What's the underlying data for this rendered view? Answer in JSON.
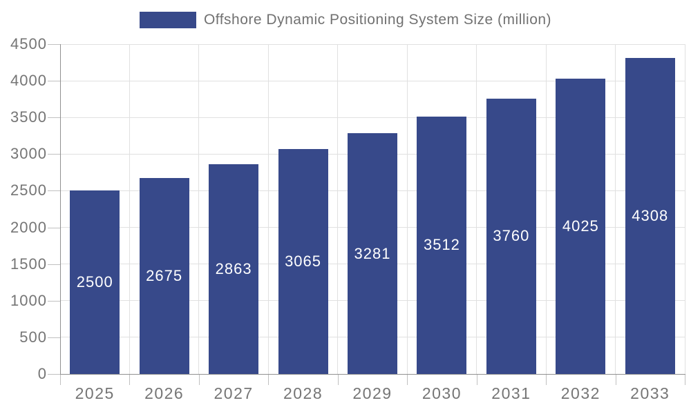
{
  "legend": {
    "label": "Offshore Dynamic Positioning System Size (million)"
  },
  "colors": {
    "bar": "#37498A",
    "axis_line": "#909090",
    "grid_line": "#e0e0e0",
    "tick_line": "#c0c0c0",
    "axis_text": "#757575",
    "legend_text": "#717171",
    "value_text": "#ffffff",
    "background": "#ffffff"
  },
  "chart_data": {
    "type": "bar",
    "title": "Offshore Dynamic Positioning System Size (million)",
    "categories": [
      "2025",
      "2026",
      "2027",
      "2028",
      "2029",
      "2030",
      "2031",
      "2032",
      "2033"
    ],
    "values": [
      2500,
      2675,
      2863,
      3065,
      3281,
      3512,
      3760,
      4025,
      4308
    ],
    "xlabel": "",
    "ylabel": "",
    "ylim": [
      0,
      4500
    ],
    "ytick_step": 500,
    "yticks": [
      0,
      500,
      1000,
      1500,
      2000,
      2500,
      3000,
      3500,
      4000,
      4500
    ],
    "grid": true,
    "legend_position": "top",
    "value_labels": "inside-center"
  }
}
